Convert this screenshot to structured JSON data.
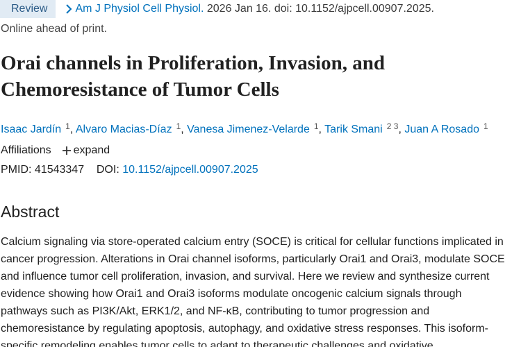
{
  "header": {
    "badge": "Review",
    "journal": "Am J Physiol Cell Physiol.",
    "citation": "2026 Jan 16. doi: 10.1152/ajpcell.00907.2025.",
    "status": "Online ahead of print."
  },
  "title_lines": [
    "Orai channels in Proliferation, Invasion, and",
    "Chemoresistance of Tumor Cells"
  ],
  "authors": [
    {
      "name": "Isaac Jardín",
      "affiliations": [
        "1"
      ]
    },
    {
      "name": "Alvaro Macias-Díaz",
      "affiliations": [
        "1"
      ]
    },
    {
      "name": "Vanesa Jimenez-Velarde",
      "affiliations": [
        "1"
      ]
    },
    {
      "name": "Tarik Smani",
      "affiliations": [
        "2",
        "3"
      ]
    },
    {
      "name": "Juan A Rosado",
      "affiliations": [
        "1"
      ]
    }
  ],
  "author_separator": ",",
  "affiliations": {
    "label": "Affiliations",
    "toggle": "expand"
  },
  "identifiers": {
    "pmid_label": "PMID:",
    "pmid": "41543347",
    "doi_label": "DOI:",
    "doi": "10.1152/ajpcell.00907.2025"
  },
  "abstract": {
    "heading": "Abstract",
    "lines": [
      "Calcium signaling via store-operated calcium entry (SOCE) is critical for cellular functions implicated in",
      "cancer progression. Alterations in Orai channel isoforms, particularly Orai1 and Orai3, modulate SOCE",
      "and influence tumor cell proliferation, invasion, and survival. Here we review and synthesize current",
      "evidence showing how Orai1 and Orai3 isoforms modulate oncogenic calcium signals through",
      "pathways such as PI3K/Akt, ERK1/2, and NF-κB, contributing to tumor progression and",
      "chemoresistance by regulating apoptosis, autophagy, and oxidative stress responses. This isoform-",
      "specific remodeling enables tumor cells to adapt to therapeutic challenges and oxidative"
    ]
  }
}
